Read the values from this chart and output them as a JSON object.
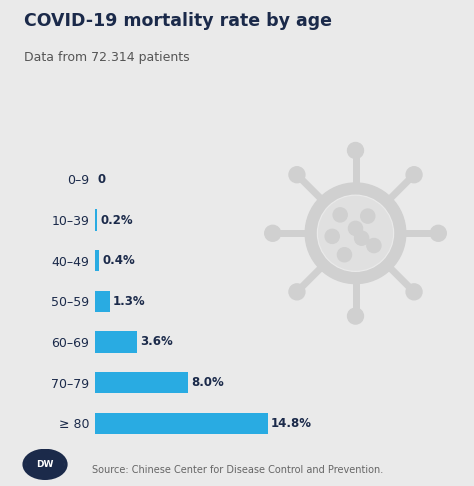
{
  "title": "COVID-19 mortality rate by age",
  "subtitle": "Data from 72.314 patients",
  "source": "Source: Chinese Center for Disease Control and Prevention.",
  "categories": [
    "0–9",
    "10–39",
    "40–49",
    "50–59",
    "60–69",
    "70–79",
    "≥ 80"
  ],
  "values": [
    0,
    0.2,
    0.4,
    1.3,
    3.6,
    8.0,
    14.8
  ],
  "labels": [
    "0",
    "0.2%",
    "0.4%",
    "1.3%",
    "3.6%",
    "8.0%",
    "14.8%"
  ],
  "bar_color": "#29ABE2",
  "background_color": "#EAEAEA",
  "title_color": "#1B2A4A",
  "subtitle_color": "#555555",
  "label_color": "#1B2A4A",
  "source_color": "#666666",
  "virus_color": "#D0D0D0",
  "dw_color": "#1B2A4A",
  "xlim": [
    0,
    17.0
  ],
  "bar_height": 0.52,
  "min_bar_width": 0.08
}
